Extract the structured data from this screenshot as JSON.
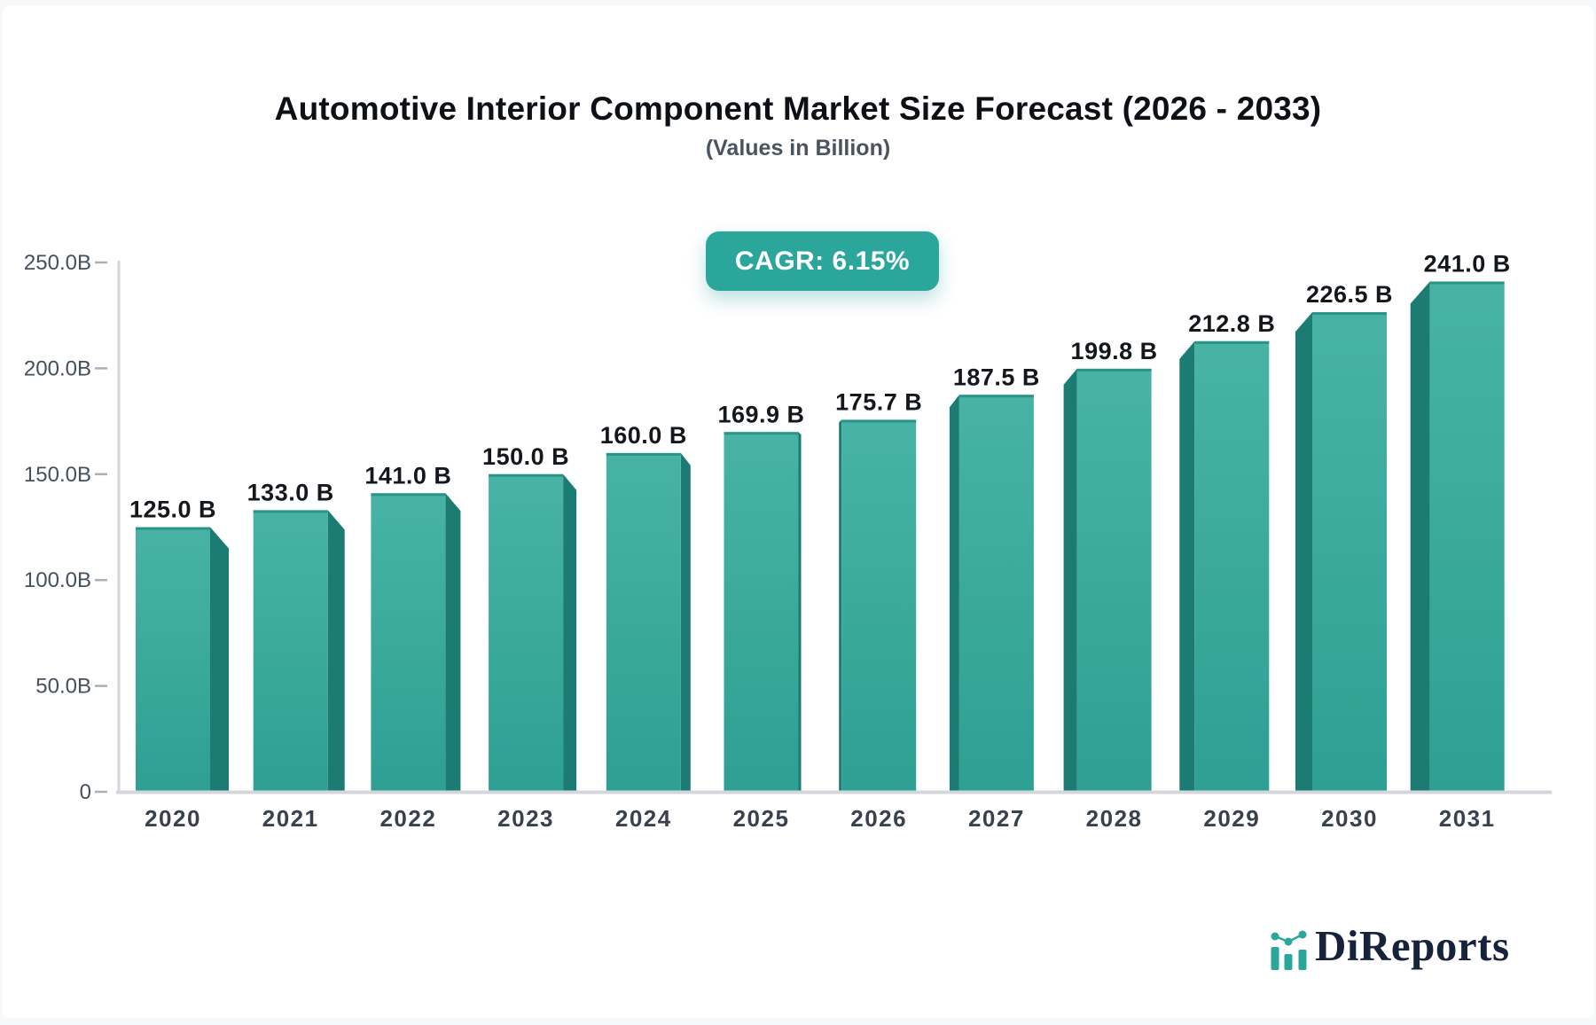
{
  "page": {
    "background": "#f7f8fa",
    "card_background": "#ffffff"
  },
  "header": {
    "title": "Automotive Interior Component Market Size Forecast (2026 - 2033)",
    "subtitle": "(Values in Billion)"
  },
  "badge": {
    "label": "CAGR: 6.15%",
    "cagr_value": "6.15%",
    "background": "#2aa69b",
    "text_color": "#ffffff"
  },
  "chart_data": {
    "type": "bar",
    "style": "3d-extruded-columns",
    "title": "Automotive Interior Component Market Size Forecast (2026 - 2033)",
    "subtitle": "(Values in Billion)",
    "xlabel": "",
    "ylabel": "",
    "unit": "Billion",
    "categories": [
      "2020",
      "2021",
      "2022",
      "2023",
      "2024",
      "2025",
      "2026",
      "2027",
      "2028",
      "2029",
      "2030",
      "2031"
    ],
    "values": [
      125.0,
      133.0,
      141.0,
      150.0,
      160.0,
      169.9,
      175.7,
      187.5,
      199.8,
      212.8,
      226.5,
      241.0
    ],
    "value_labels": [
      "125.0 B",
      "133.0 B",
      "141.0 B",
      "150.0 B",
      "160.0 B",
      "169.9 B",
      "175.7 B",
      "187.5 B",
      "199.8 B",
      "212.8 B",
      "226.5 B",
      "241.0 B"
    ],
    "y_ticks": [
      "250.0B",
      "200.0B",
      "150.0B",
      "100.0B",
      "50.0B",
      "0"
    ],
    "y_tick_values": [
      250,
      200,
      150,
      100,
      50,
      0
    ],
    "ylim": [
      0,
      250
    ],
    "grid": false,
    "legend": null,
    "colors": {
      "bar_front_top": "#48b3a5",
      "bar_front_bottom": "#2da093",
      "bar_top_edge": "#2b9488",
      "bar_side": "#1c7c73",
      "axis": "#d3d7db",
      "tick_dash": "#9aa2ab",
      "y_label": "#454f5d",
      "x_label": "#39414f",
      "value_label": "#14181d"
    }
  },
  "logo": {
    "text": "DiReports",
    "icon": "bar-chart-sparkline-icon",
    "text_color": "#16233a",
    "icon_color": "#2aa69b"
  }
}
